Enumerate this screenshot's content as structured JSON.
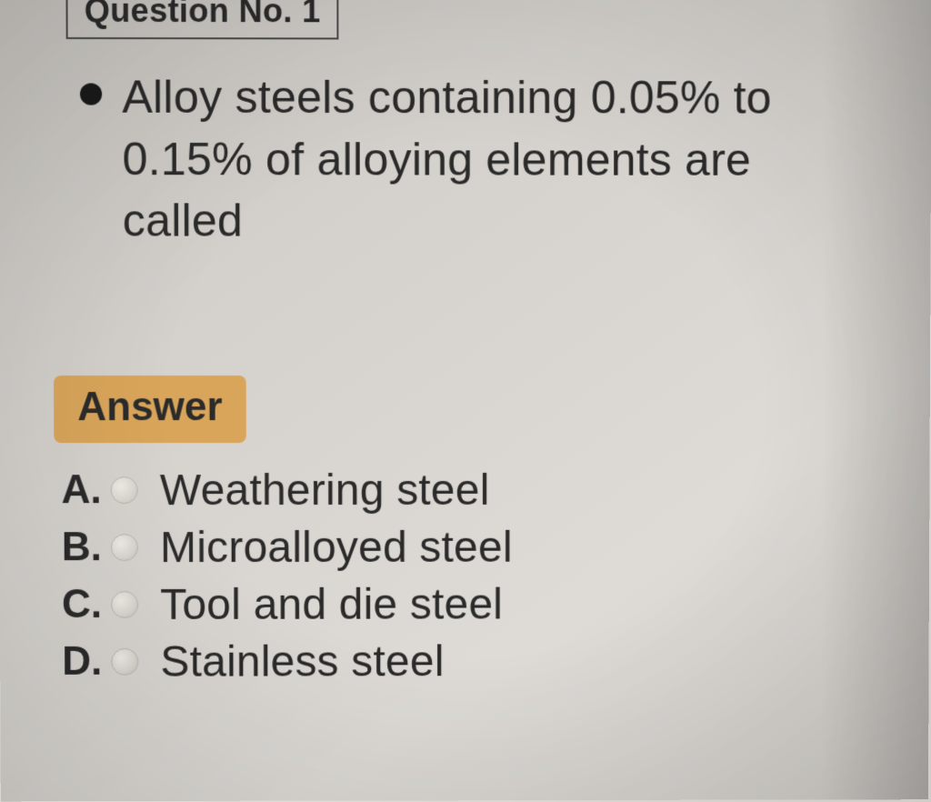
{
  "colors": {
    "background_start": "#c8c5c0",
    "background_mid": "#dedbd6",
    "text": "#2a2a2a",
    "bullet": "#1a1a1a",
    "answer_badge_bg": "#d9a55a",
    "radio_fill": "#dad6d0",
    "radio_border": "#b8b4ae"
  },
  "typography": {
    "header_fontsize": 36,
    "question_fontsize": 50,
    "answer_badge_fontsize": 44,
    "option_letter_fontsize": 44,
    "option_text_fontsize": 48,
    "font_family": "Segoe UI"
  },
  "header": {
    "label": "Question No. 1"
  },
  "question": {
    "text": "Alloy steels containing 0.05% to 0.15% of alloying elements are called"
  },
  "answer": {
    "badge_label": "Answer",
    "options": [
      {
        "letter": "A.",
        "text": "Weathering steel"
      },
      {
        "letter": "B.",
        "text": "Microalloyed steel"
      },
      {
        "letter": "C.",
        "text": "Tool and die steel"
      },
      {
        "letter": "D.",
        "text": "Stainless steel"
      }
    ]
  }
}
